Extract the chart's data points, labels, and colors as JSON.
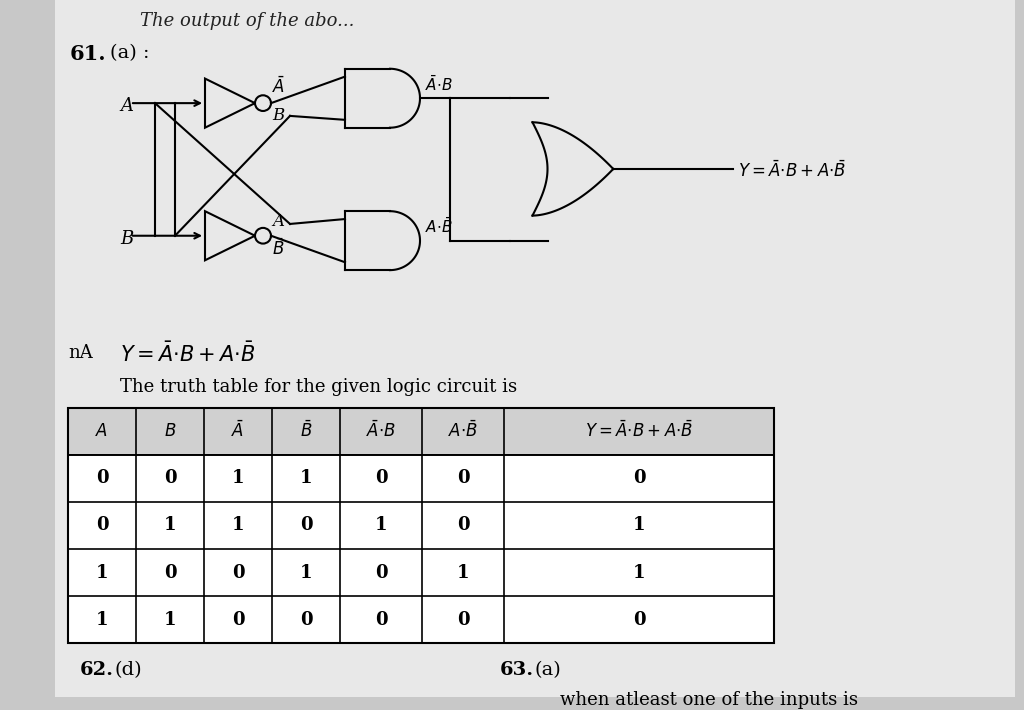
{
  "bg_color": "#c8c8c8",
  "page_bg": "#e0e0e0",
  "table_data": [
    [
      0,
      0,
      1,
      1,
      0,
      0,
      0
    ],
    [
      0,
      1,
      1,
      0,
      1,
      0,
      1
    ],
    [
      1,
      0,
      0,
      1,
      0,
      1,
      1
    ],
    [
      1,
      1,
      0,
      0,
      0,
      0,
      0
    ]
  ],
  "top_text": "The output of the abo...",
  "label_61": "61.",
  "label_a": "(a) :",
  "nA_label": "nA",
  "formula": "Y = \\bar{A}\\cdot B + A\\cdot\\bar{B}",
  "table_intro": "The truth table for the given logic circuit is",
  "label_62": "62.",
  "label_62b": "(d)",
  "label_63": "63.",
  "label_63b": "(a)",
  "bottom_text": "when atleast one of the inputs is"
}
